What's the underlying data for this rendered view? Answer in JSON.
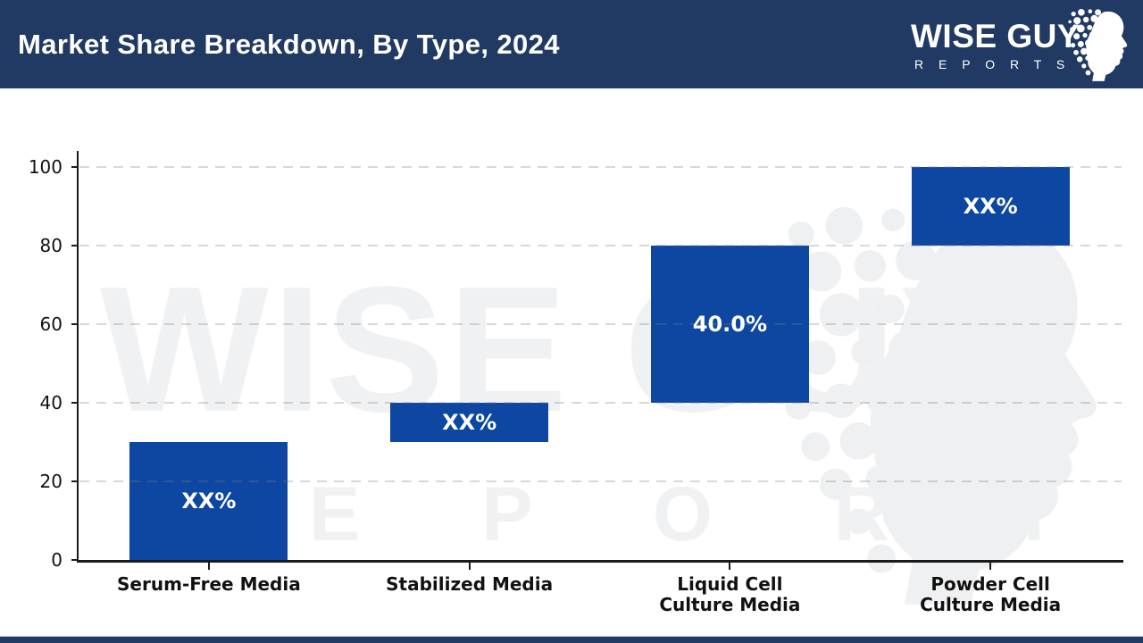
{
  "header": {
    "title": "Market Share Breakdown, By Type, 2024",
    "logo": {
      "line1": "WISE GUY",
      "line2": "R E P O R T S"
    }
  },
  "watermark": {
    "line1": "WISE GUY",
    "line2": "R E P O R T S"
  },
  "colors": {
    "header_bg": "#203a64",
    "bar": "#0d47a1",
    "axis": "#1a1a1a",
    "watermark": "#f0f1f3"
  },
  "chart_data": {
    "type": "bar",
    "subtype": "floating-segment (waterfall style market share)",
    "title": "Market Share Breakdown, By Type, 2024",
    "xlabel": "",
    "ylabel": "",
    "ylim": [
      0,
      100
    ],
    "yticks": [
      0,
      20,
      40,
      60,
      80,
      100
    ],
    "grid": "horizontal dashed",
    "legend": "none",
    "bar_color": "#0d47a1",
    "categories": [
      [
        "Serum-Free Media"
      ],
      [
        "Stabilized Media"
      ],
      [
        "Liquid Cell",
        "Culture Media"
      ],
      [
        "Powder Cell",
        "Culture Media"
      ]
    ],
    "bars": [
      {
        "category": "Serum-Free Media",
        "start": 0,
        "end": 30,
        "value_label": "XX%"
      },
      {
        "category": "Stabilized Media",
        "start": 30,
        "end": 40,
        "value_label": "XX%"
      },
      {
        "category": "Liquid Cell Culture Media",
        "start": 40,
        "end": 80,
        "value_label": "40.0%"
      },
      {
        "category": "Powder Cell Culture Media",
        "start": 80,
        "end": 100,
        "value_label": "XX%"
      }
    ]
  }
}
